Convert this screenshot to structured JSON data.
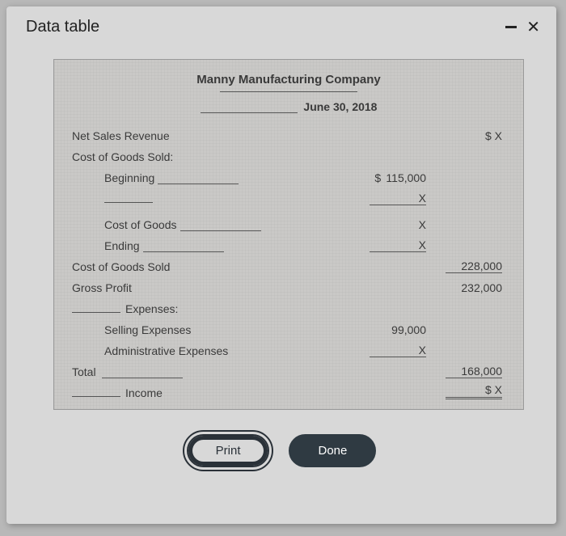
{
  "window": {
    "title": "Data table"
  },
  "statement": {
    "company": "Manny Manufacturing Company",
    "date": "June 30, 2018",
    "rows": {
      "net_sales": "Net Sales Revenue",
      "net_sales_val": "$ X",
      "cogs_header": "Cost of Goods Sold:",
      "beginning": "Beginning",
      "beginning_amt": "115,000",
      "cost_of_goods": "Cost of Goods",
      "ending": "Ending",
      "cogs_total": "Cost of Goods Sold",
      "cogs_total_amt": "228,000",
      "gross_profit": "Gross Profit",
      "gross_profit_amt": "232,000",
      "expenses": "Expenses:",
      "selling": "Selling Expenses",
      "selling_amt": "99,000",
      "admin": "Administrative Expenses",
      "total": "Total",
      "total_amt": "168,000",
      "income": "Income",
      "income_amt": "$ X",
      "x": "X",
      "dollar": "$"
    }
  },
  "buttons": {
    "print": "Print",
    "done": "Done"
  }
}
